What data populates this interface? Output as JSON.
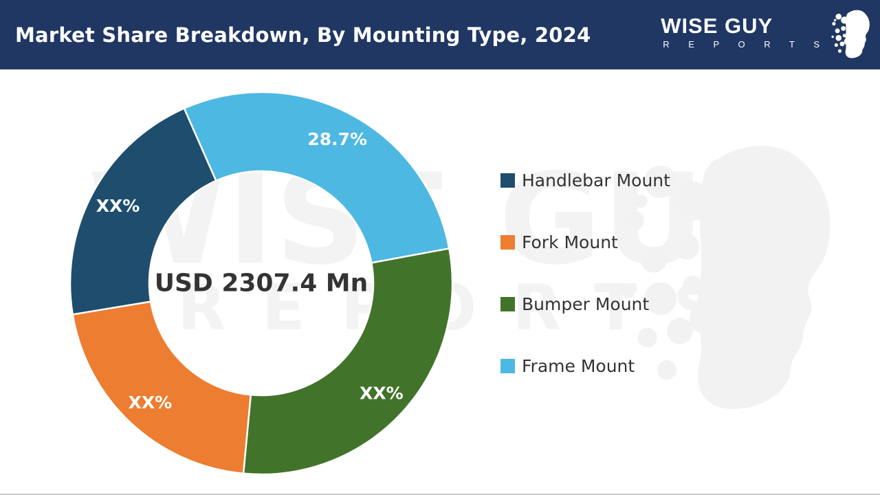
{
  "header": {
    "title": "Market Share Breakdown, By Mounting Type, 2024",
    "logo_line1": "WISE GUY",
    "logo_line2": "R E P O R T S"
  },
  "watermark": {
    "line1": "WISE GUY",
    "line2": "REPORTS"
  },
  "chart_data": {
    "type": "pie",
    "subtype": "donut",
    "title": "Market Share Breakdown, By Mounting Type, 2024",
    "center_label": "USD 2307.4 Mn",
    "start_angle_clockwise_from_top_deg": -23.8,
    "inner_radius_ratio": 0.586,
    "legend_position": "right",
    "segments": [
      {
        "name": "Frame Mount",
        "label": "28.7%",
        "value": 28.7,
        "color": "#4DB8E2"
      },
      {
        "name": "Bumper Mount",
        "label": "XX%",
        "value": 29.4,
        "color": "#42732A"
      },
      {
        "name": "Fork Mount",
        "label": "XX%",
        "value": 20.9,
        "color": "#ED7D31"
      },
      {
        "name": "Handlebar Mount",
        "label": "XX%",
        "value": 21.0,
        "color": "#1E4D6E"
      }
    ],
    "legend": [
      {
        "label": "Handlebar Mount",
        "color": "#1E4D6E"
      },
      {
        "label": "Fork Mount",
        "color": "#ED7D31"
      },
      {
        "label": "Bumper Mount",
        "color": "#42732A"
      },
      {
        "label": "Frame Mount",
        "color": "#4DB8E2"
      }
    ]
  },
  "colors": {
    "header_bg": "#203764",
    "text_dark": "#333333",
    "watermark": "#F3F3F3",
    "bottom_rule": "#C9C9C9"
  }
}
